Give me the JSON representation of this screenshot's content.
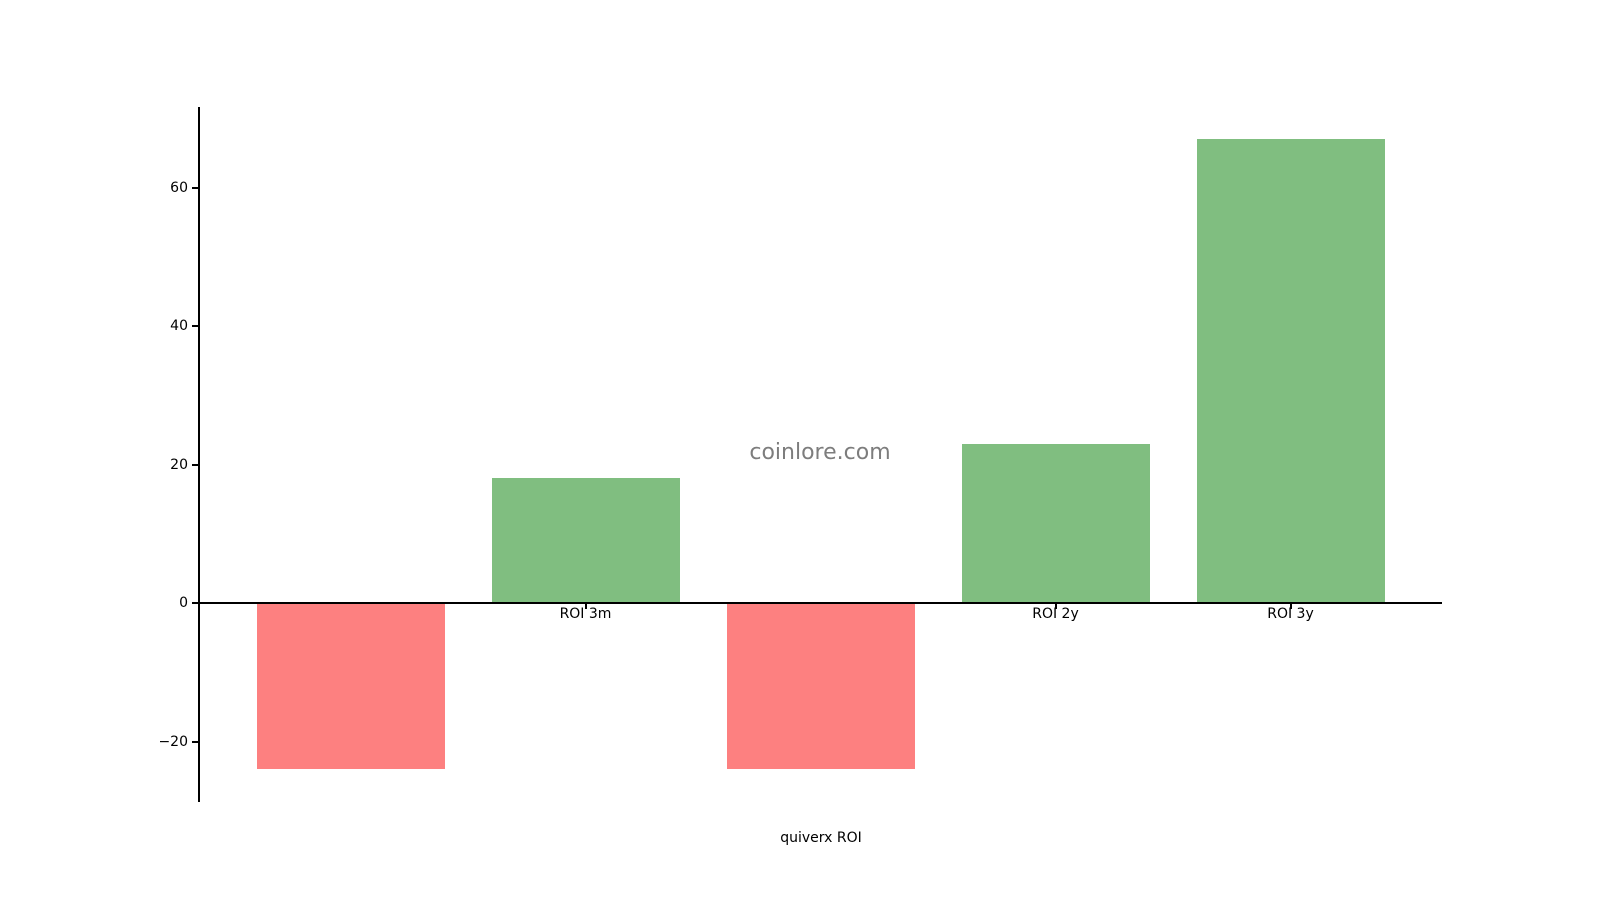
{
  "chart_data": {
    "type": "bar",
    "title": "",
    "xlabel": "quiverx ROI",
    "ylabel": "",
    "watermark": "coinlore.com",
    "categories": [
      "",
      "ROI 3m",
      "",
      "ROI 2y",
      "ROI 3y"
    ],
    "values": [
      -24,
      18,
      -24,
      23,
      67
    ],
    "bar_colors": [
      "#fd8080",
      "#80be80",
      "#fd8080",
      "#80be80",
      "#80be80"
    ],
    "yticks": [
      {
        "value": 60,
        "label": "60"
      },
      {
        "value": 40,
        "label": "40"
      },
      {
        "value": 20,
        "label": "20"
      },
      {
        "value": 0,
        "label": "0"
      },
      {
        "value": -20,
        "label": "−20"
      }
    ],
    "ylim": [
      -28.7,
      71.7
    ],
    "grid": false,
    "legend": null,
    "colors": {
      "positive": "#80be80",
      "negative": "#fd8080",
      "axis": "#000000",
      "watermark": "#7d7d7d",
      "background": "#ffffff"
    }
  }
}
